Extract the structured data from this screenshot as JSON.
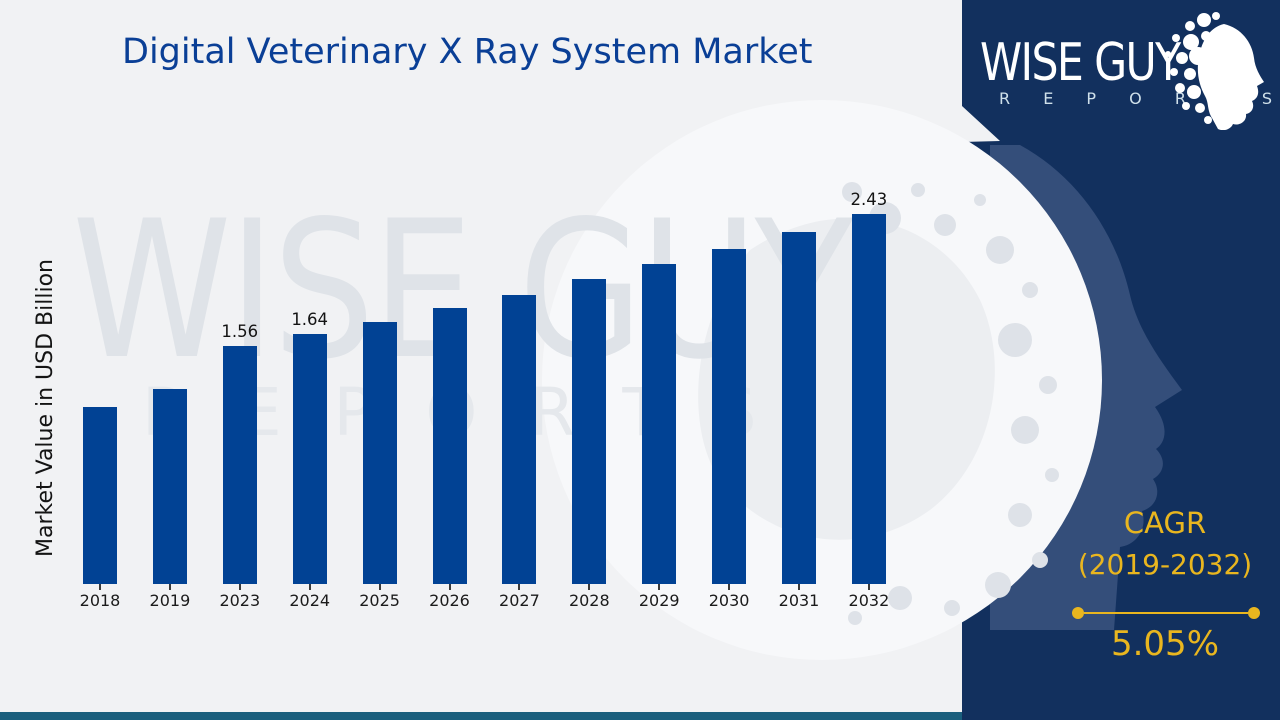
{
  "header": {
    "title": "Digital Veterinary X Ray System Market"
  },
  "logo": {
    "line1": "WISE GUY",
    "line2": "R E P O R T S"
  },
  "watermark": {
    "line1": "WISE GUY",
    "line2": "REPORTS"
  },
  "chart_data": {
    "type": "bar",
    "title": "Digital Veterinary X Ray System Market",
    "xlabel": "",
    "ylabel": "Market Value in USD Billion",
    "categories": [
      "2018",
      "2019",
      "2023",
      "2024",
      "2025",
      "2026",
      "2027",
      "2028",
      "2029",
      "2030",
      "2031",
      "2032"
    ],
    "values": [
      1.16,
      1.28,
      1.56,
      1.64,
      1.72,
      1.81,
      1.9,
      2.0,
      2.1,
      2.2,
      2.31,
      2.43
    ],
    "bar_labels": [
      "",
      "",
      "1.56",
      "1.64",
      "",
      "",
      "",
      "",
      "",
      "",
      "",
      "2.43"
    ],
    "ylim": [
      0,
      2.6
    ],
    "grid": false,
    "legend": null,
    "bar_color": "#014294"
  },
  "cagr": {
    "title": "CAGR",
    "range": "(2019-2032)",
    "value": "5.05%"
  },
  "colors": {
    "title_blue": "#0a3f96",
    "bar_blue": "#014294",
    "navy_panel": "#12305e",
    "accent_gold": "#e9b61f",
    "teal_strip": "#1a5f7d",
    "background": "#f1f2f4"
  }
}
